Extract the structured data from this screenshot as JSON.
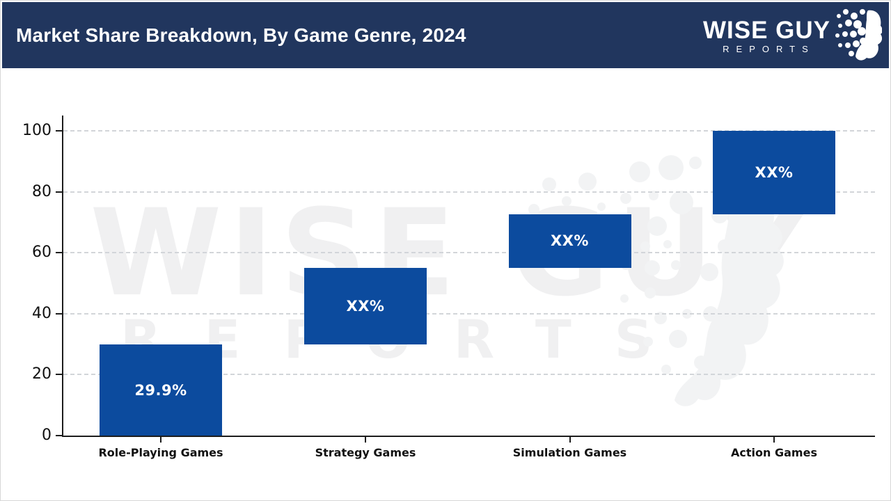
{
  "header": {
    "title": "Market Share Breakdown, By Game Genre, 2024",
    "bg_color": "#21365E",
    "logo": {
      "line1": "WISE GUY",
      "line2": "REPORTS"
    }
  },
  "watermark": {
    "line1": "WISE GUY",
    "line2": "REPORTS"
  },
  "chart_data": {
    "type": "bar",
    "subtype": "waterfall",
    "title": "Market Share Breakdown, By Game Genre, 2024",
    "categories": [
      "Role-Playing Games",
      "Strategy Games",
      "Simulation Games",
      "Action Games"
    ],
    "segments": [
      {
        "category": "Role-Playing Games",
        "start": 0,
        "end": 29.9,
        "label": "29.9%"
      },
      {
        "category": "Strategy Games",
        "start": 29.9,
        "end": 55.1,
        "label": "XX%"
      },
      {
        "category": "Simulation Games",
        "start": 55.1,
        "end": 72.6,
        "label": "XX%"
      },
      {
        "category": "Action Games",
        "start": 72.6,
        "end": 100,
        "label": "XX%"
      }
    ],
    "increments": [
      29.9,
      25.2,
      17.5,
      27.4
    ],
    "yticks": [
      0,
      20,
      40,
      60,
      80,
      100
    ],
    "ylim": [
      0,
      105
    ],
    "xlabel": "",
    "ylabel": "",
    "grid": "horizontal-dashed",
    "legend": "none",
    "bar_color": "#0C4B9E",
    "bar_label_color": "#FFFFFF",
    "axis_color": "#1C1C1C"
  }
}
